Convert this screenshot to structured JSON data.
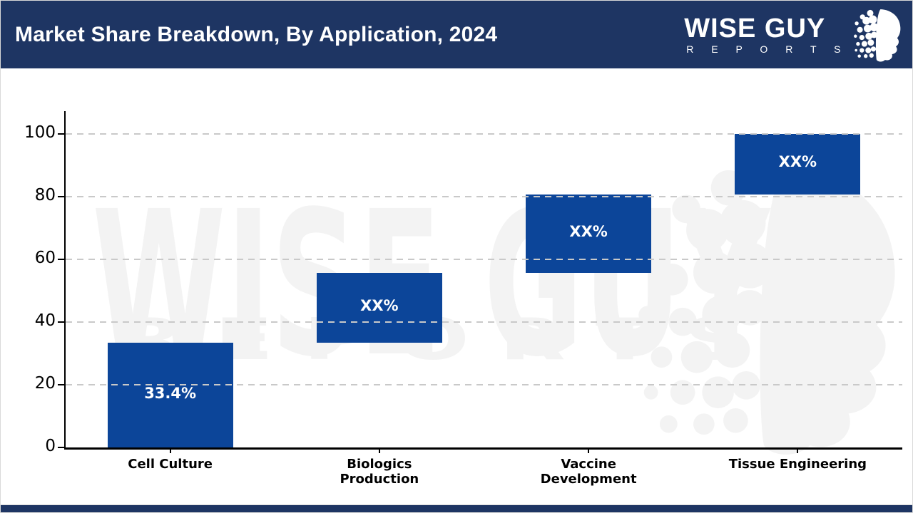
{
  "header": {
    "title": "Market Share Breakdown, By Application, 2024",
    "logo": {
      "line1": "WISE GUY",
      "line2": "R E P O R T S"
    }
  },
  "watermark": {
    "line1": "WISE GUY",
    "line2": "R E P O R T S"
  },
  "colors": {
    "navy": "#1e3563",
    "bar_blue": "#0c4599",
    "watermark_gray": "#f3f3f3",
    "gridline_gray": "#c9c9c9",
    "hairline_gray": "#d9d9d9"
  },
  "chart_data": {
    "type": "bar",
    "subtype": "waterfall",
    "title": "Market Share Breakdown, By Application, 2024",
    "categories": [
      "Cell Culture",
      "Biologics Production",
      "Vaccine Development",
      "Tissue Engineering"
    ],
    "category_lines": [
      [
        "Cell Culture"
      ],
      [
        "Biologics",
        "Production"
      ],
      [
        "Vaccine",
        "Development"
      ],
      [
        "Tissue Engineering"
      ]
    ],
    "segments": [
      {
        "category": "Cell Culture",
        "from": 0,
        "to": 33.4,
        "label": "33.4%"
      },
      {
        "category": "Biologics Production",
        "from": 33.4,
        "to": 55.7,
        "label": "XX%"
      },
      {
        "category": "Vaccine Development",
        "from": 55.7,
        "to": 80.7,
        "label": "XX%"
      },
      {
        "category": "Tissue Engineering",
        "from": 80.7,
        "to": 100,
        "label": "XX%"
      }
    ],
    "yticks": [
      0,
      20,
      40,
      60,
      80,
      100
    ],
    "ylim": [
      0,
      100
    ],
    "xlabel": "",
    "ylabel": "",
    "legend": "none",
    "grid": "horizontal-dashed-above-bars",
    "bar_color": "#0c4599",
    "axis_color": "#000000",
    "gridline_color": "#c9c9c9",
    "bar_label_color": "#ffffff"
  }
}
